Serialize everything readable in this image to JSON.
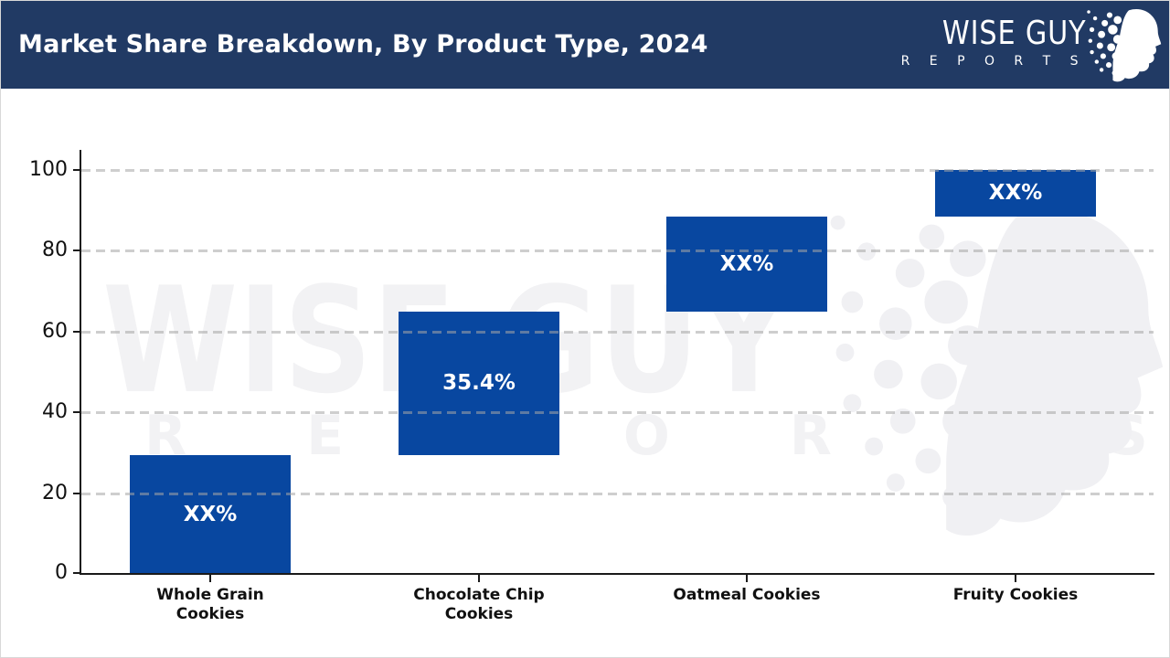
{
  "header": {
    "title": "Market Share Breakdown, By Product Type, 2024",
    "logo": {
      "brand_top": "WISE GUY",
      "brand_bottom": "R E P O R T S"
    }
  },
  "watermark": {
    "brand_top": "WISE GUY",
    "brand_bottom": "R E P O R T S"
  },
  "chart_data": {
    "type": "bar",
    "variant": "waterfall",
    "title": "Market Share Breakdown, By Product Type, 2024",
    "categories": [
      "Whole Grain Cookies",
      "Chocolate Chip Cookies",
      "Oatmeal Cookies",
      "Fruity Cookies"
    ],
    "tick_labels": [
      "Whole Grain\nCookies",
      "Chocolate Chip\nCookies",
      "Oatmeal Cookies",
      "Fruity Cookies"
    ],
    "segments": [
      {
        "category": "Whole Grain Cookies",
        "start": 0,
        "end": 29.5,
        "value": 29.5,
        "label": "XX%"
      },
      {
        "category": "Chocolate Chip Cookies",
        "start": 29.5,
        "end": 64.9,
        "value": 35.4,
        "label": "35.4%"
      },
      {
        "category": "Oatmeal Cookies",
        "start": 64.9,
        "end": 88.5,
        "value": 23.6,
        "label": "XX%"
      },
      {
        "category": "Fruity Cookies",
        "start": 88.5,
        "end": 100,
        "value": 11.5,
        "label": "XX%"
      }
    ],
    "y_ticks": [
      "0",
      "20",
      "40",
      "60",
      "80",
      "100"
    ],
    "ylim": [
      0,
      105
    ],
    "xlabel": "",
    "ylabel": "",
    "grid": "horizontal-dashed",
    "legend": "none",
    "bar_color": "#0847A0",
    "bar_label_color": "#FFFFFF"
  },
  "colors": {
    "header_bg": "#213A64",
    "bar_blue": "#0847A0",
    "watermark_gray": "#F2F2F4",
    "axis": "#1A1A1A",
    "page_border": "#D8D8D8"
  }
}
